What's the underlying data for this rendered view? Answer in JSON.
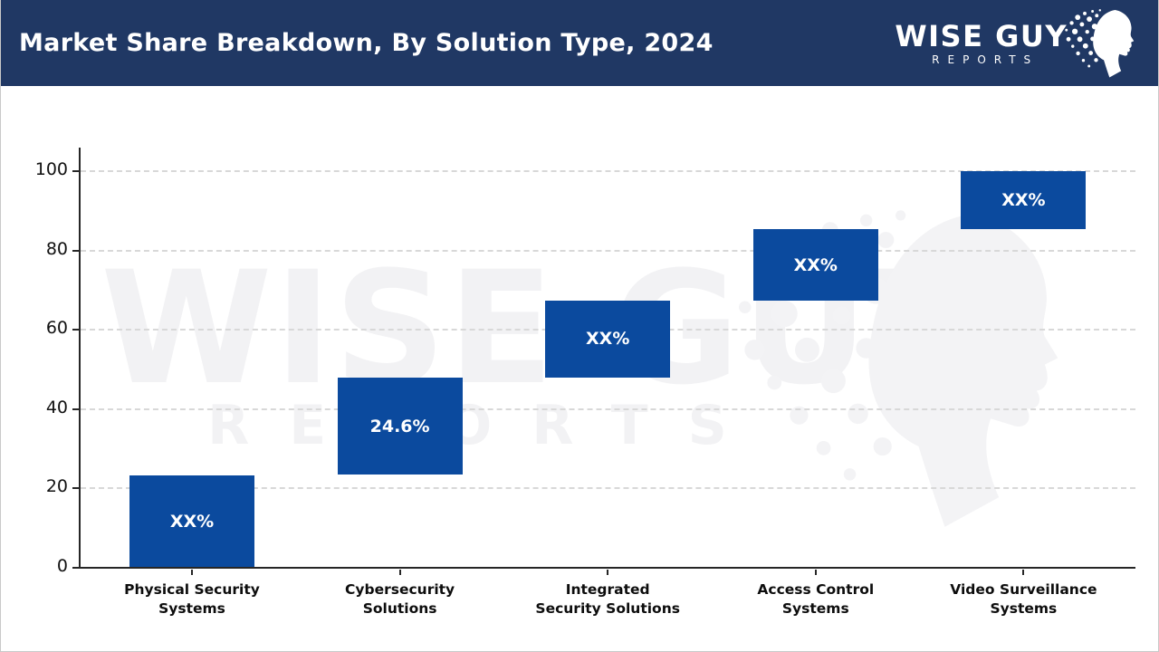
{
  "header": {
    "title": "Market Share Breakdown, By Solution Type, 2024",
    "bg_color": "#203864",
    "logo": {
      "name": "WISE GUY",
      "sub": "REPORTS"
    }
  },
  "watermark": {
    "line1": "WISE GUY",
    "line2": "REPORTS"
  },
  "chart_data": {
    "type": "bar",
    "subtype": "floating-waterfall",
    "title": "Market Share Breakdown, By Solution Type, 2024",
    "categories": [
      "Physical Security Systems",
      "Cybersecurity Solutions",
      "Integrated Security Solutions",
      "Access Control Systems",
      "Video Surveillance Systems"
    ],
    "bars": [
      {
        "label_lines": [
          "Physical Security",
          "Systems"
        ],
        "start": 0,
        "end": 23.4,
        "value_label": "XX%"
      },
      {
        "label_lines": [
          "Cybersecurity",
          "Solutions"
        ],
        "start": 23.4,
        "end": 48.0,
        "value_label": "24.6%"
      },
      {
        "label_lines": [
          "Integrated",
          "Security Solutions"
        ],
        "start": 48.0,
        "end": 67.3,
        "value_label": "XX%"
      },
      {
        "label_lines": [
          "Access Control",
          "Systems"
        ],
        "start": 67.3,
        "end": 85.3,
        "value_label": "XX%"
      },
      {
        "label_lines": [
          "Video Surveillance",
          "Systems"
        ],
        "start": 85.3,
        "end": 100,
        "value_label": "XX%"
      }
    ],
    "known_values": {
      "Cybersecurity Solutions": 24.6
    },
    "xlabel": "",
    "ylabel": "",
    "yticks": [
      0,
      20,
      40,
      60,
      80,
      100
    ],
    "ylim": [
      0,
      106
    ],
    "grid": "dashed-horizontal",
    "legend": "none",
    "bar_color": "#0B4A9E",
    "bar_label_color": "#ffffff",
    "axis_color": "#262626",
    "grid_color": "#d8d8d8"
  }
}
